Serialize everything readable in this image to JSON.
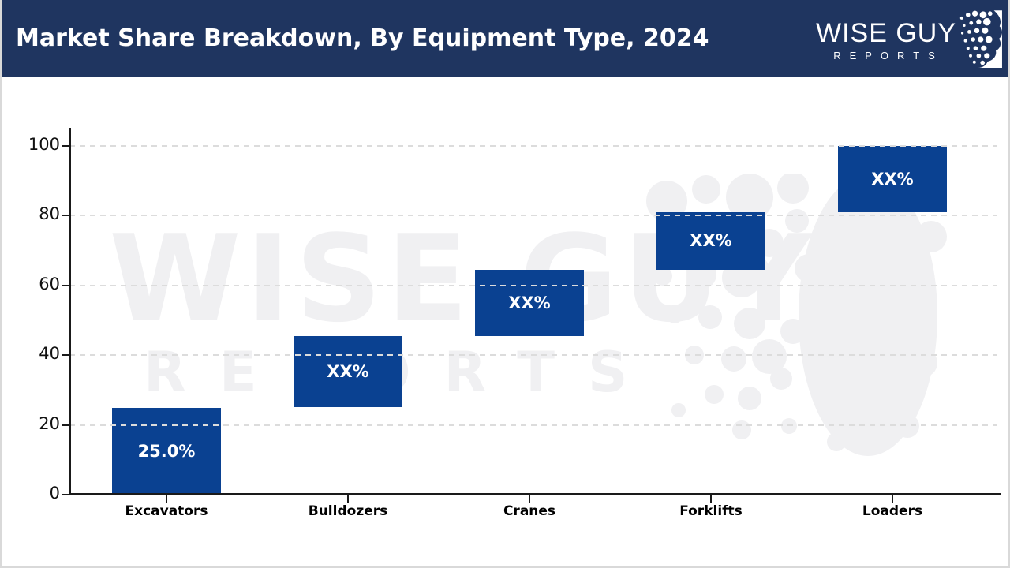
{
  "header": {
    "title": "Market Share Breakdown, By Equipment Type, 2024",
    "logo": {
      "line1": "WISE GUY",
      "line2": "REPORTS",
      "head_icon": "dotted-profile-head"
    }
  },
  "watermark": {
    "line1": "WISE GUY",
    "line2": "REPORTS",
    "graphic": "dotted-profile-head"
  },
  "colors": {
    "header_bg": "#1f3560",
    "bar": "#0a4191",
    "grid": "#dcdcdc",
    "axis": "#1a1a1a",
    "watermark": "#f0f0f2",
    "card_border": "#d9d9d9",
    "bar_label": "#ffffff",
    "title_text": "#ffffff"
  },
  "chart_data": {
    "type": "bar",
    "variant": "waterfall",
    "title": "Market Share Breakdown, By Equipment Type, 2024",
    "categories": [
      "Excavators",
      "Bulldozers",
      "Cranes",
      "Forklifts",
      "Loaders"
    ],
    "segments": [
      {
        "category": "Excavators",
        "start": 0,
        "end": 25,
        "label": "25.0%"
      },
      {
        "category": "Bulldozers",
        "start": 25,
        "end": 45.5,
        "label": "XX%"
      },
      {
        "category": "Cranes",
        "start": 45.5,
        "end": 64.5,
        "label": "XX%"
      },
      {
        "category": "Forklifts",
        "start": 64.5,
        "end": 81,
        "label": "XX%"
      },
      {
        "category": "Loaders",
        "start": 81,
        "end": 100,
        "label": "XX%"
      }
    ],
    "ylabel": "",
    "xlabel": "",
    "yticks": [
      0,
      20,
      40,
      60,
      80,
      100
    ],
    "ylim": [
      0,
      105
    ],
    "grid": "dashed-horizontal-over-bars",
    "legend": "none"
  }
}
